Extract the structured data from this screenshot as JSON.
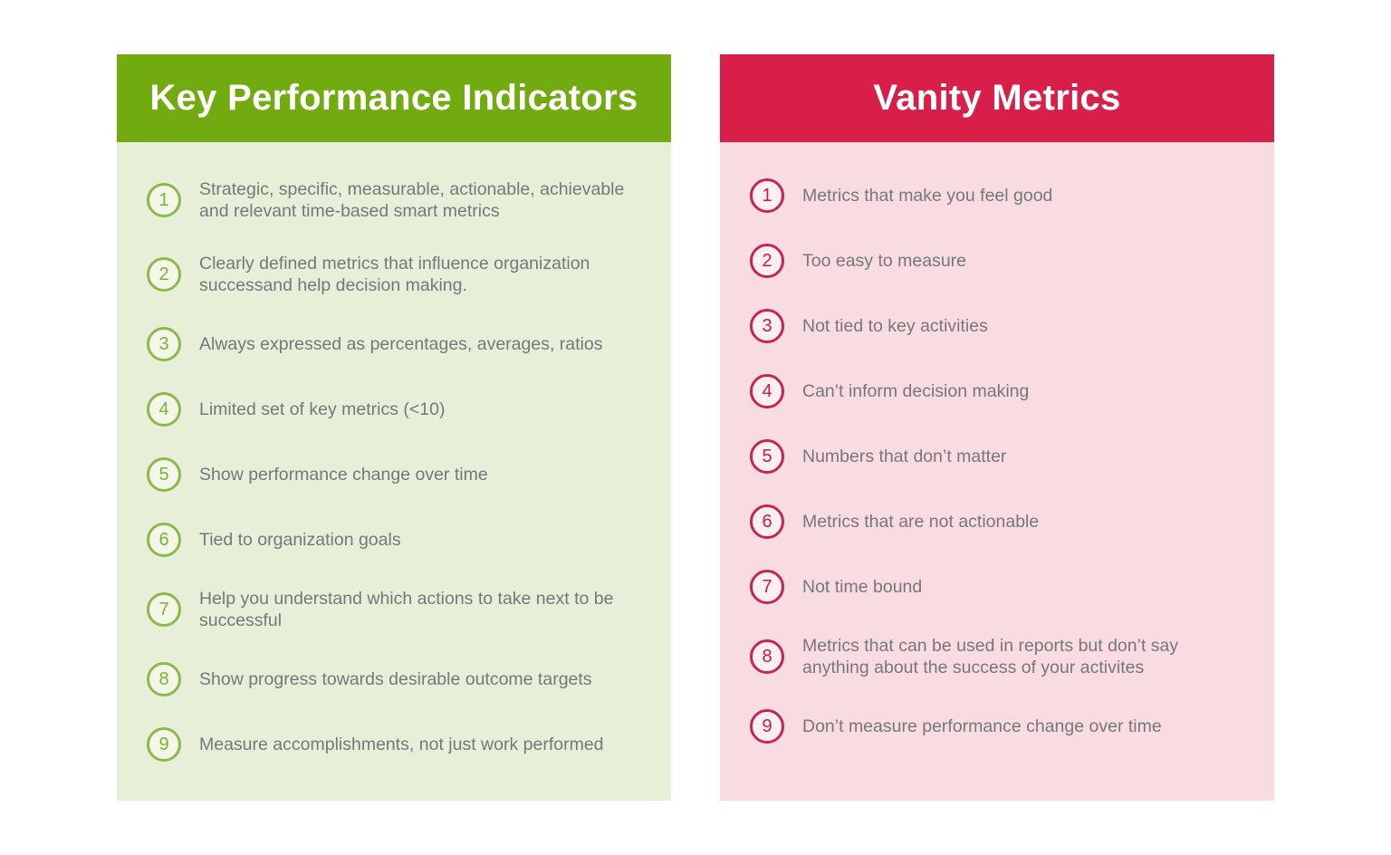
{
  "page": {
    "background": "#ffffff"
  },
  "panels": [
    {
      "id": "kpi",
      "title": "Key Performance Indicators",
      "theme": {
        "header_bg": "#71ab10",
        "body_bg": "#e8efd8",
        "circle_border": "#8cb94a",
        "circle_fill": "#f3f7e8",
        "circle_num": "#7eb13a",
        "text_color": "#76777b"
      },
      "items": [
        {
          "number": "1",
          "text": "Strategic, specific, measurable, actionable, achievable and relevant time-based smart metrics"
        },
        {
          "number": "2",
          "text": "Clearly defined metrics that influence organization successand help decision making."
        },
        {
          "number": "3",
          "text": "Always expressed as percentages, averages, ratios"
        },
        {
          "number": "4",
          "text": "Limited set of key metrics (<10)"
        },
        {
          "number": "5",
          "text": "Show performance change over time"
        },
        {
          "number": "6",
          "text": "Tied to organization goals"
        },
        {
          "number": "7",
          "text": "Help you understand which actions to take next to be successful"
        },
        {
          "number": "8",
          "text": "Show progress towards desirable outcome targets"
        },
        {
          "number": "9",
          "text": "Measure accomplishments, not just work performed"
        }
      ]
    },
    {
      "id": "vanity",
      "title": "Vanity Metrics",
      "theme": {
        "header_bg": "#d71f49",
        "body_bg": "#f9dbe2",
        "circle_border": "#c62553",
        "circle_fill": "#fdeff2",
        "circle_num": "#c61c4b",
        "text_color": "#76777b"
      },
      "items": [
        {
          "number": "1",
          "text": "Metrics that make you feel good"
        },
        {
          "number": "2",
          "text": "Too easy to measure"
        },
        {
          "number": "3",
          "text": "Not tied to key activities"
        },
        {
          "number": "4",
          "text": "Can’t inform decision making"
        },
        {
          "number": "5",
          "text": "Numbers that don’t matter"
        },
        {
          "number": "6",
          "text": "Metrics that are not actionable"
        },
        {
          "number": "7",
          "text": "Not time bound"
        },
        {
          "number": "8",
          "text": "Metrics that can be used in reports but don’t say anything about the success of your activites"
        },
        {
          "number": "9",
          "text": "Don’t measure performance change over time"
        }
      ]
    }
  ]
}
